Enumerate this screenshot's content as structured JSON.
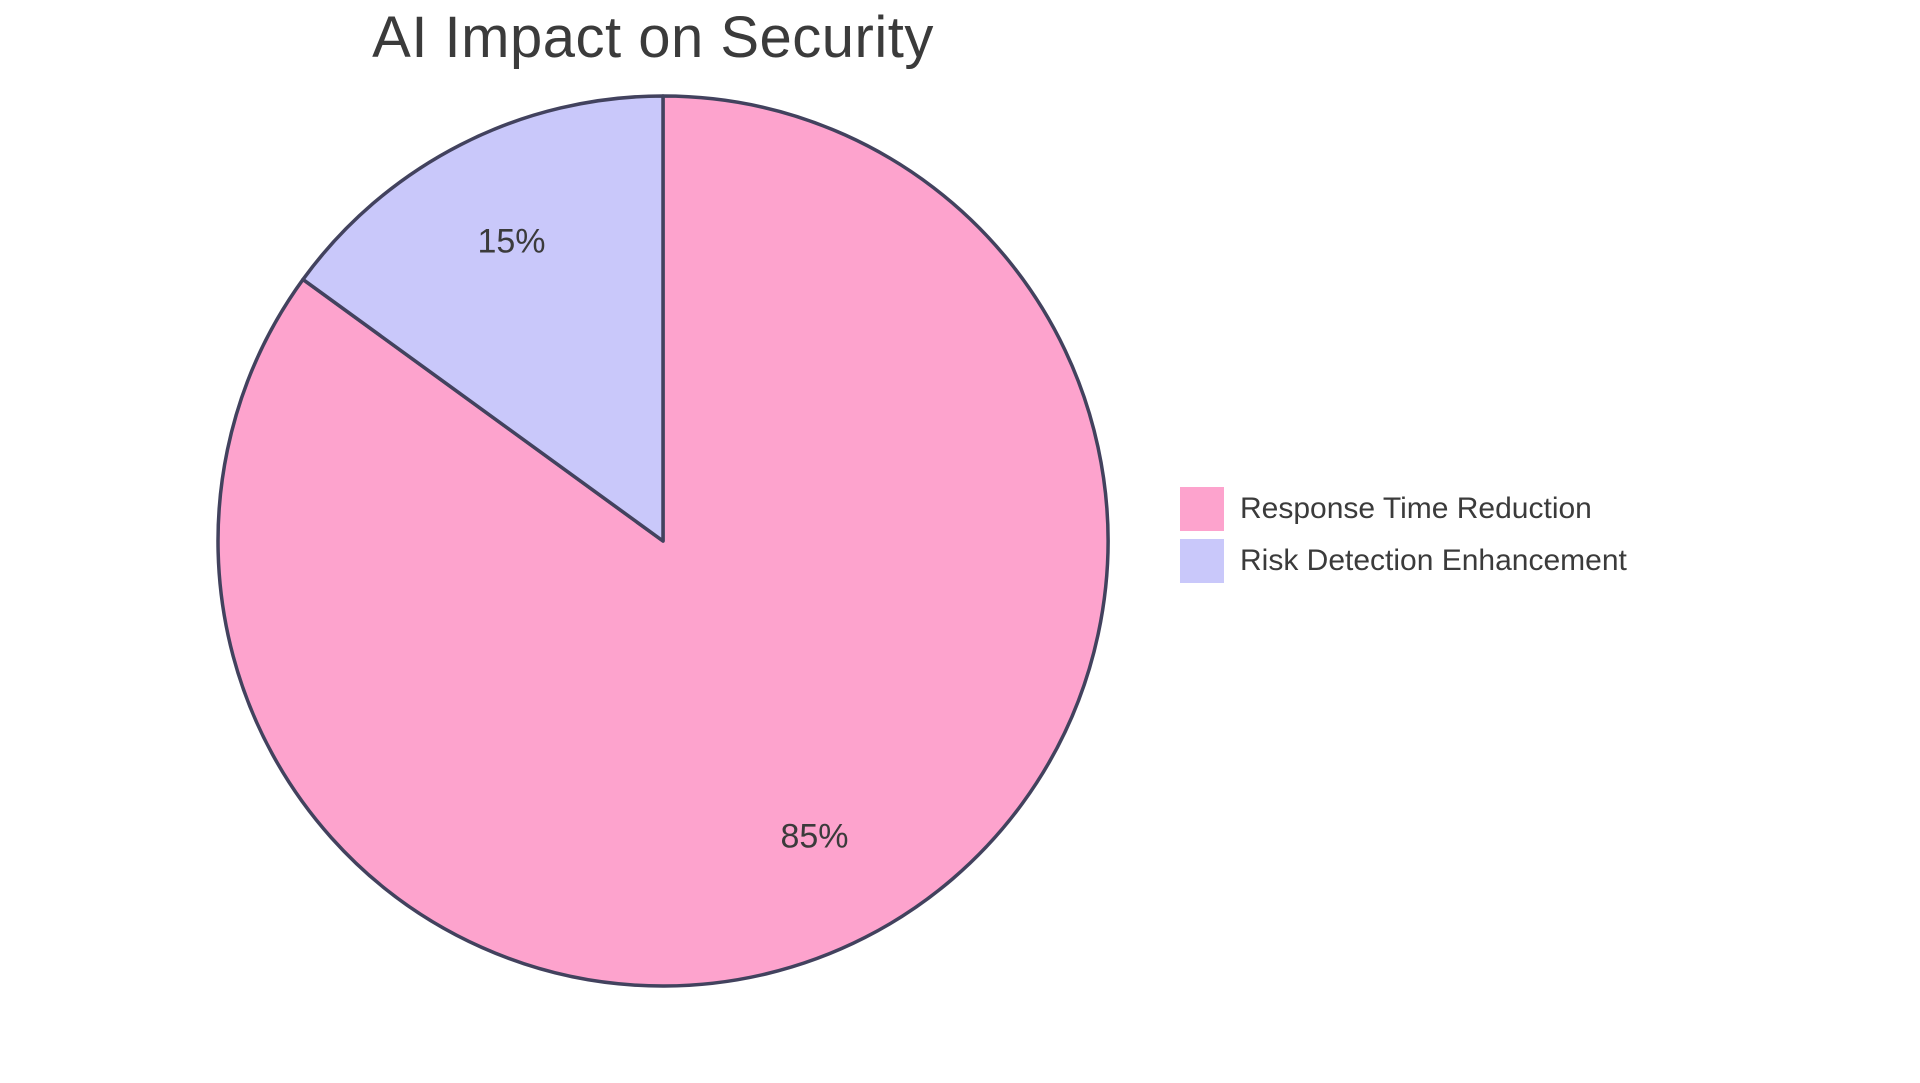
{
  "chart_data": {
    "type": "pie",
    "title": "AI Impact on Security",
    "slices": [
      {
        "label": "Response Time Reduction",
        "value": 85,
        "pct_label": "85%",
        "color": "#FDA3CD"
      },
      {
        "label": "Risk Detection Enhancement",
        "value": 15,
        "pct_label": "15%",
        "color": "#C9C8FA"
      }
    ],
    "start_angle_deg": 0,
    "direction": "clockwise",
    "stroke_color": "#42425E",
    "stroke_width": 3.5,
    "text_color": "#3B3B3B",
    "label_radius_fraction": 0.75,
    "legend_position": "right",
    "grid": "off"
  }
}
